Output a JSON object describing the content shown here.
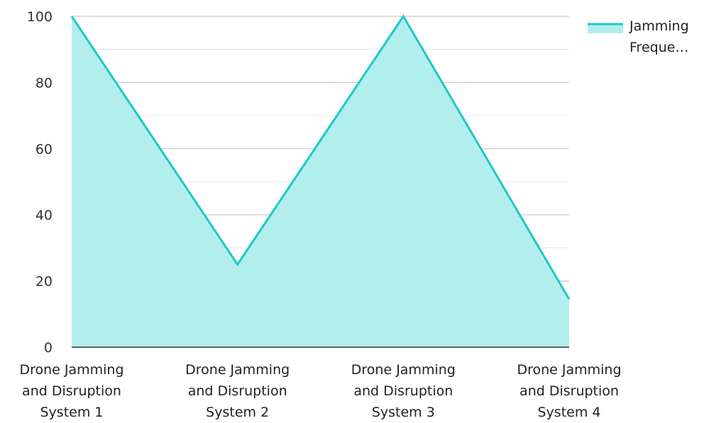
{
  "chart_data": {
    "type": "area",
    "categories": [
      "Drone Jamming and Disruption System 1",
      "Drone Jamming and Disruption System 2",
      "Drone Jamming and Disruption System 3",
      "Drone Jamming and Disruption System 4"
    ],
    "category_lines": [
      [
        "Drone Jamming",
        "and Disruption",
        "System 1"
      ],
      [
        "Drone Jamming",
        "and Disruption",
        "System 2"
      ],
      [
        "Drone Jamming",
        "and Disruption",
        "System 3"
      ],
      [
        "Drone Jamming",
        "and Disruption",
        "System 4"
      ]
    ],
    "series": [
      {
        "name": "Jamming Freque…",
        "values": [
          100,
          25,
          100,
          14.5
        ]
      }
    ],
    "legend_lines": [
      "Jamming",
      "Freque…"
    ],
    "ylim": [
      0,
      100
    ],
    "yticks": [
      0,
      20,
      40,
      60,
      80,
      100
    ],
    "grid": true,
    "legend_position": "top-right",
    "colors": {
      "line": "#1fc8c8",
      "fill": "#b3eeee",
      "grid": "#c8c8c8",
      "axis": "#333333"
    }
  }
}
